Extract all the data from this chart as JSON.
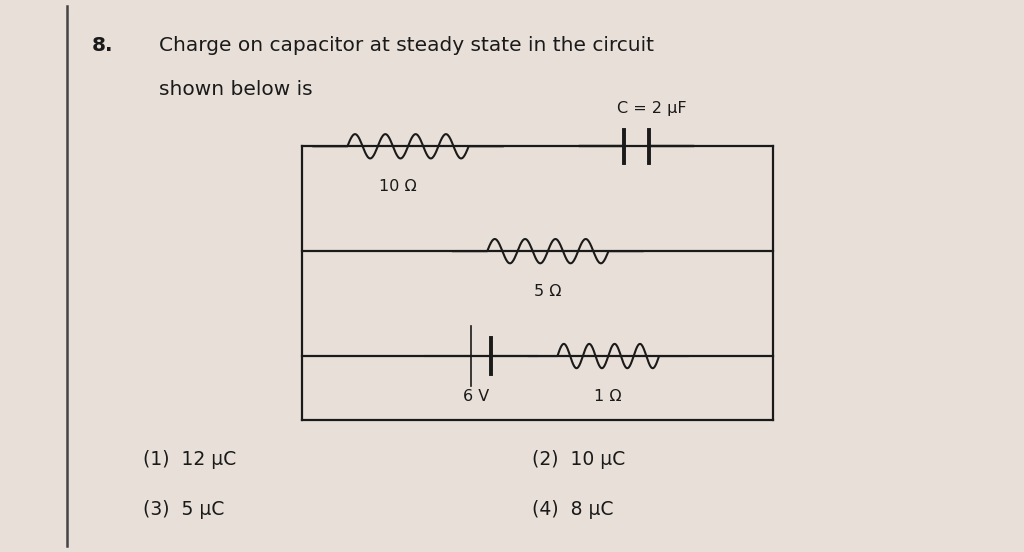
{
  "background_color": "#e8e0d8",
  "text_color": "#1a1a1a",
  "question_number": "8.",
  "question_text_line1": "Charge on capacitor at steady state in the circuit",
  "question_text_line2": "shown below is",
  "options": [
    "(1)  12 μC",
    "(3)  5 μC",
    "(2)  10 μC",
    "(4)  8 μC"
  ],
  "resistor_10_label": "10 Ω",
  "resistor_5_label": "5 Ω",
  "resistor_1_label": "1 Ω",
  "capacitor_label": "C = 2 μF",
  "battery_label": "6 V",
  "circuit_L": 0.295,
  "circuit_R": 0.755,
  "circuit_T": 0.735,
  "circuit_B": 0.24,
  "circuit_M1": 0.545,
  "circuit_M2": 0.355,
  "font_size_q": 14.5,
  "font_size_opts": 13.5,
  "font_size_circuit": 11.5
}
